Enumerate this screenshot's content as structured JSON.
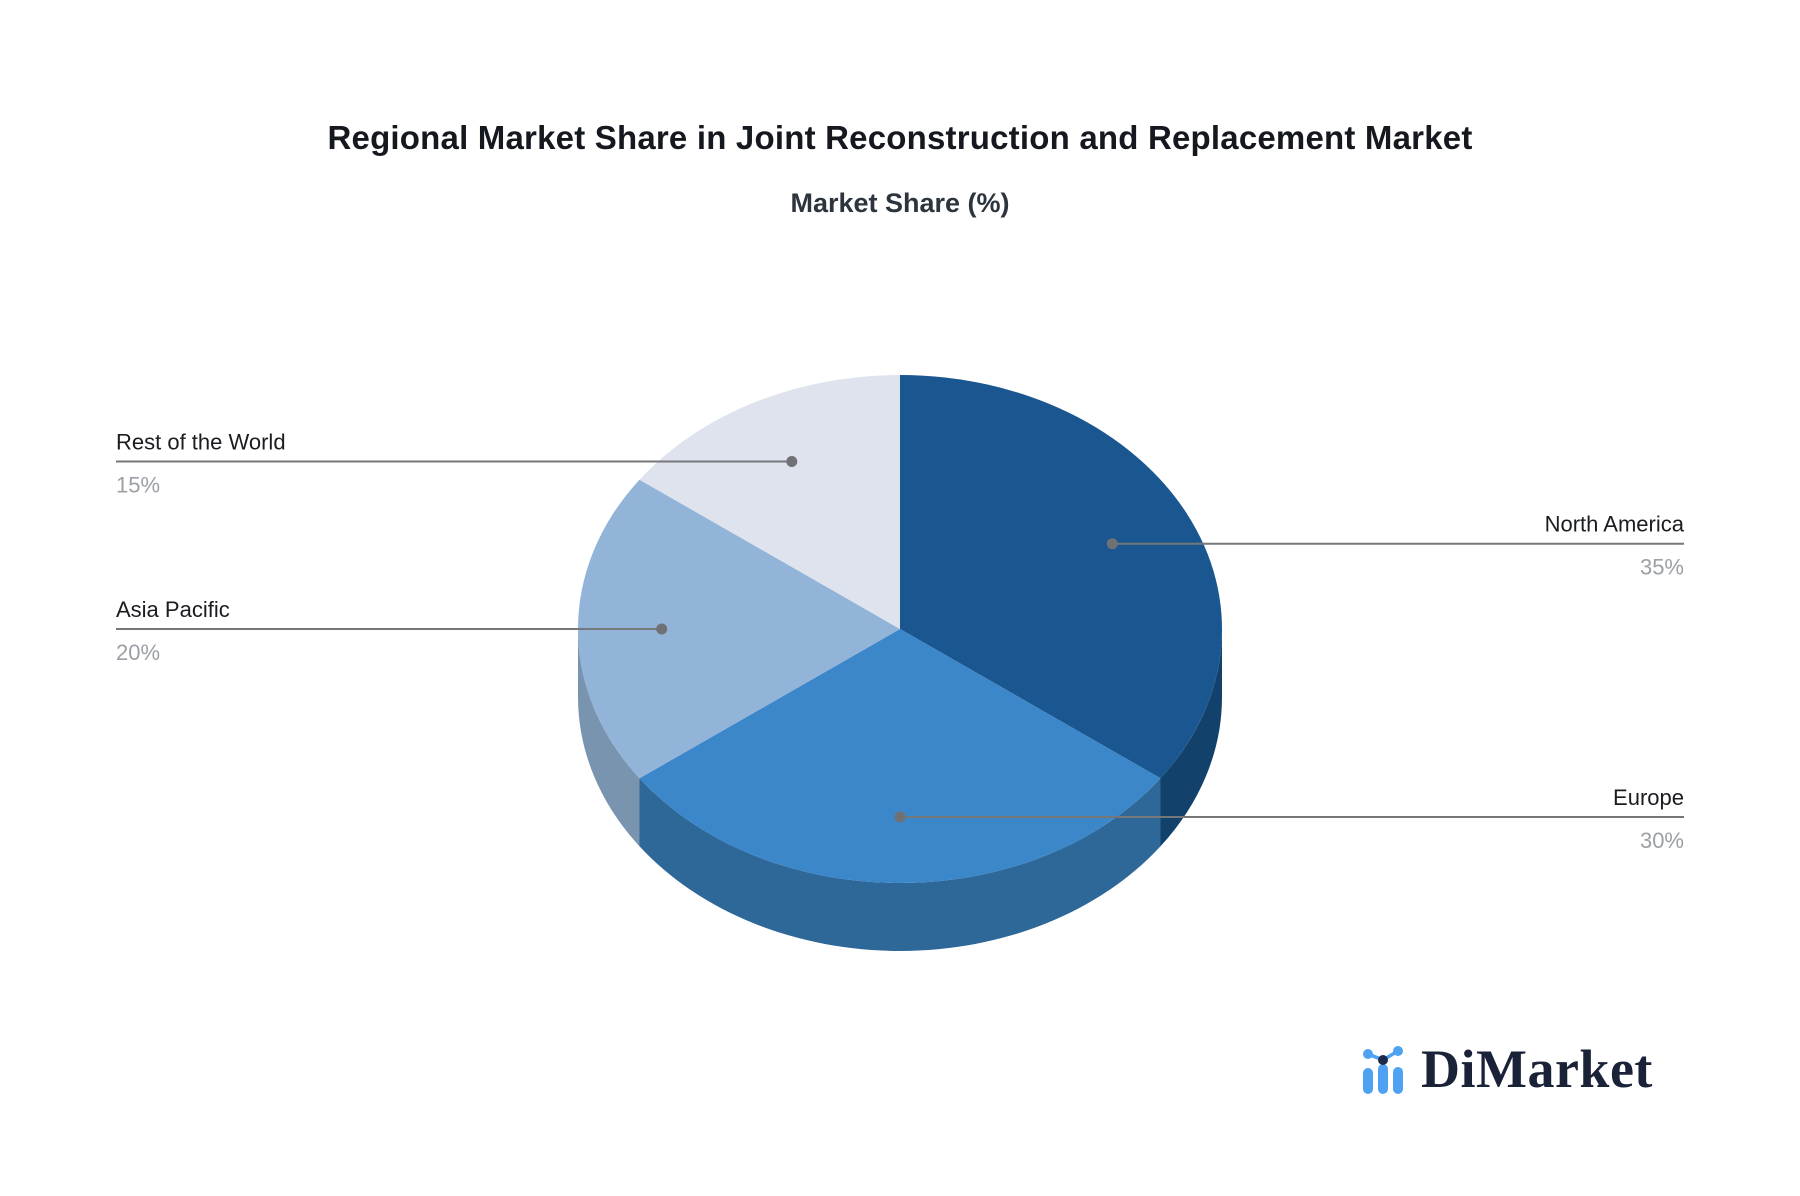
{
  "header": {
    "title": "Regional Market Share in Joint Reconstruction and Replacement Market",
    "subtitle": "Market Share (%)"
  },
  "chart_data": {
    "type": "pie",
    "style": "3d",
    "title": "Regional Market Share in Joint Reconstruction and Replacement Market",
    "subtitle": "Market Share (%)",
    "unit": "%",
    "start_angle_deg": 0,
    "direction": "clockwise",
    "slices": [
      {
        "label": "North America",
        "value": 35,
        "value_label": "35%",
        "color": "#1A5790",
        "side_color": "#12416B",
        "label_side": "right"
      },
      {
        "label": "Europe",
        "value": 30,
        "value_label": "30%",
        "color": "#3C87CA",
        "side_color": "#2D6899",
        "label_side": "right"
      },
      {
        "label": "Asia Pacific",
        "value": 20,
        "value_label": "20%",
        "color": "#92B4D8",
        "side_color": "#7894AE",
        "label_side": "left"
      },
      {
        "label": "Rest of the World",
        "value": 15,
        "value_label": "15%",
        "color": "#DEE3EE",
        "side_color": "#C4CEDD",
        "label_side": "left"
      }
    ],
    "legend": "none"
  },
  "colors": {
    "background": "#FFFFFF",
    "leader_line": "#757779",
    "leader_dot": "#6F7174",
    "slice_label_text": "#1A1C20",
    "slice_value_text": "#9BA0A6",
    "logo_bar_blue": "#4DA2F2",
    "logo_dot_navy": "#1E2A4A",
    "logo_text_navy": "#1A2238"
  },
  "branding": {
    "logo_text": "DiMarket",
    "logo_icon": "bar-line-chart-icon"
  }
}
